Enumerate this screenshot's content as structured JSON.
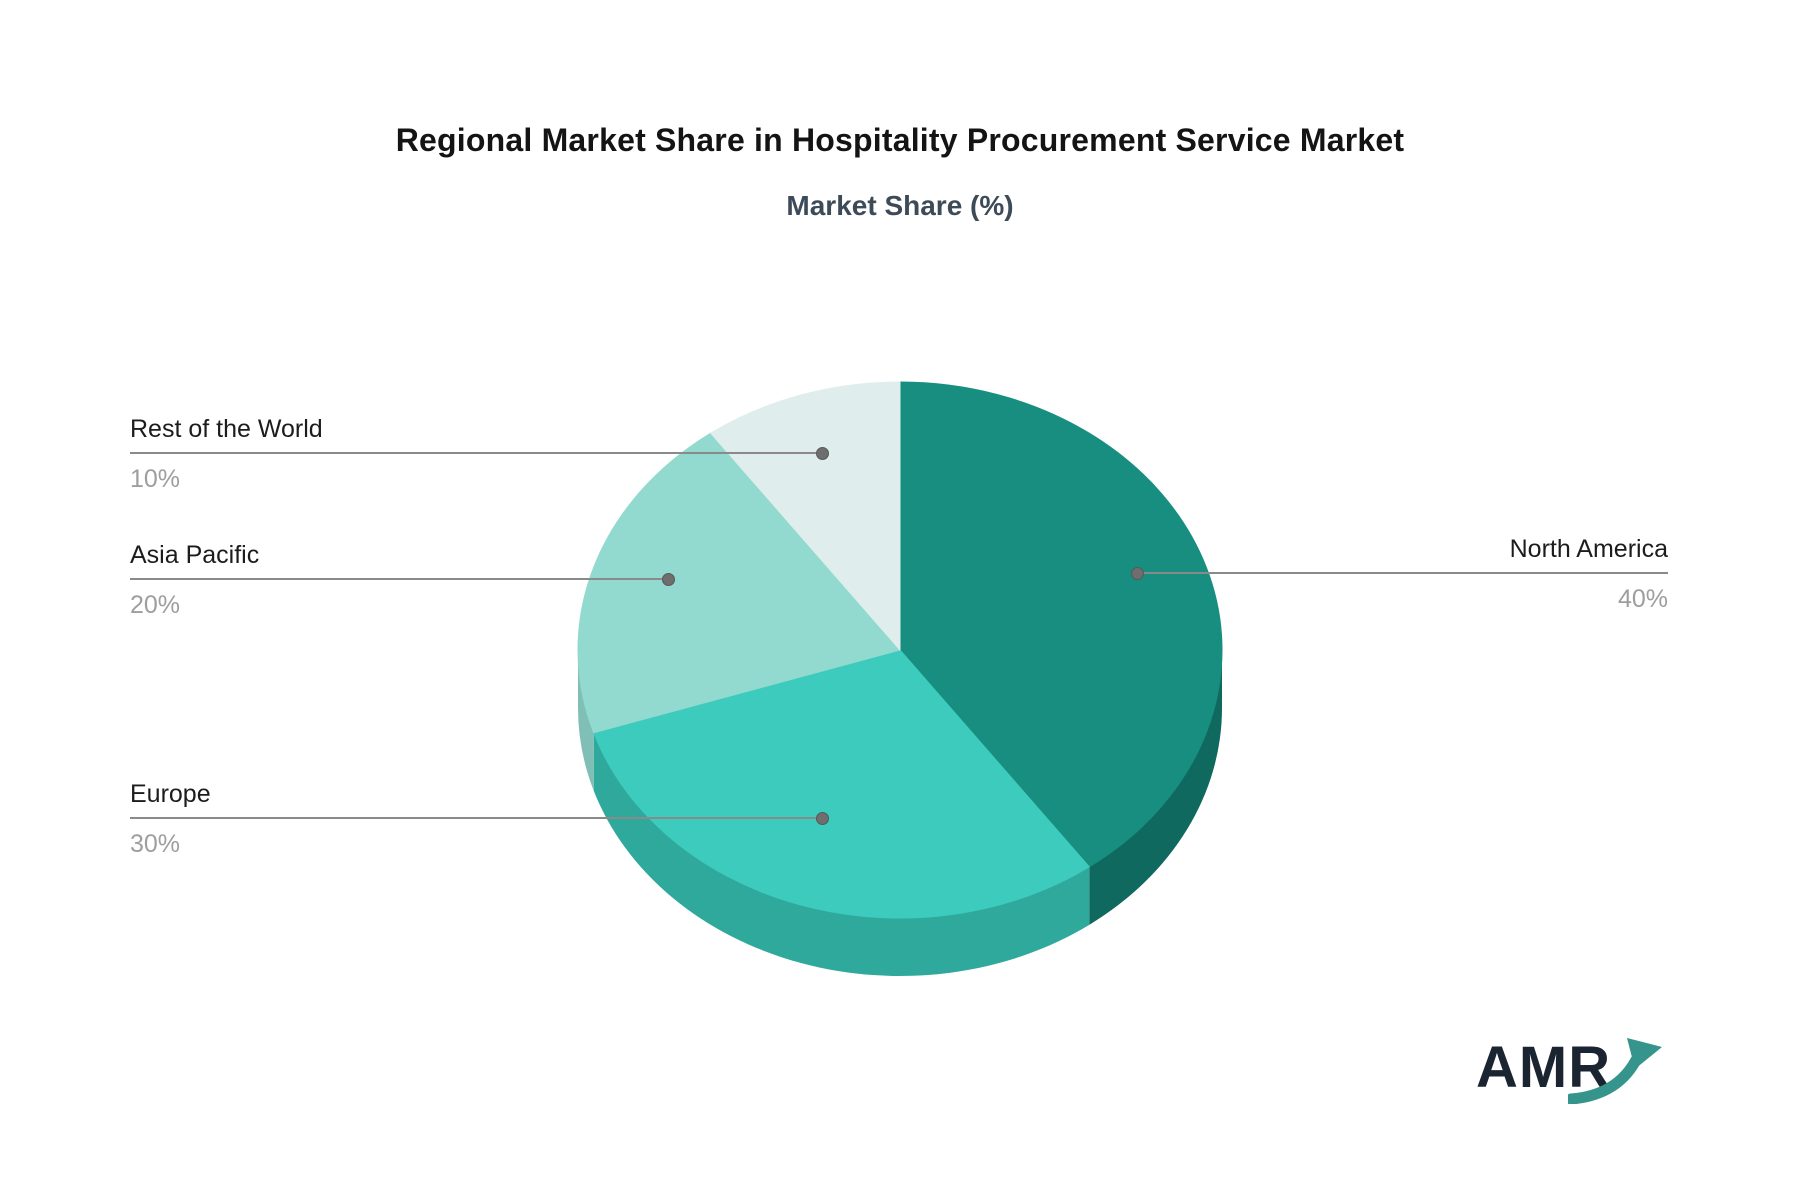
{
  "page": {
    "background_color": "#ffffff"
  },
  "header": {
    "title": "Regional Market Share in Hospitality Procurement Service Market",
    "subtitle": "Market Share (%)"
  },
  "chart_data": {
    "type": "pie",
    "style": "3d",
    "title": "Regional Market Share in Hospitality Procurement Service Market",
    "subtitle": "Market Share (%)",
    "unit": "%",
    "direction": "clockwise",
    "start_angle": "12-oclock",
    "categories": [
      "North America",
      "Europe",
      "Asia Pacific",
      "Rest of the World"
    ],
    "values": [
      40,
      30,
      20,
      10
    ],
    "slices": [
      {
        "label": "North America",
        "value": 40,
        "percent_label": "40%",
        "color": "#178E80",
        "side_color": "#10695E",
        "callout_side": "right"
      },
      {
        "label": "Europe",
        "value": 30,
        "percent_label": "30%",
        "color": "#3CCBBC",
        "side_color": "#2FA99B",
        "callout_side": "left"
      },
      {
        "label": "Asia Pacific",
        "value": 20,
        "percent_label": "20%",
        "color": "#92D9CF",
        "side_color": "#7FBFB6",
        "callout_side": "left"
      },
      {
        "label": "Rest of the World",
        "value": 10,
        "percent_label": "10%",
        "color": "#DFEEEC",
        "side_color": "#C2DDD9",
        "callout_side": "left"
      }
    ],
    "legend": "none",
    "callout_line_color": "#8A8A8A",
    "label_text_color": "#1C1C1C",
    "percent_text_color": "#9E9E9E"
  },
  "logo": {
    "text": "AMR",
    "text_color": "#1B2531",
    "arrow_color": "#35948B"
  }
}
